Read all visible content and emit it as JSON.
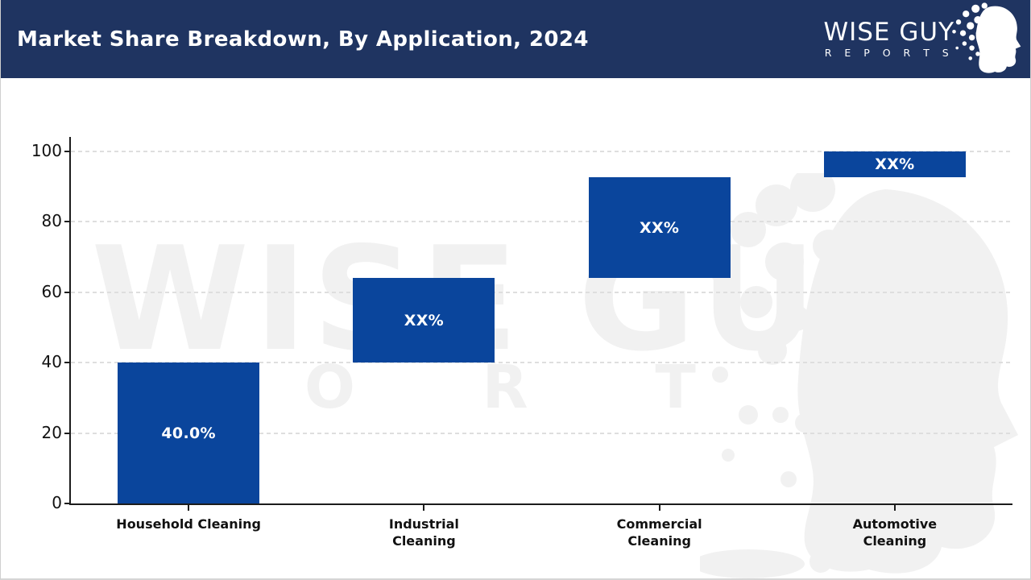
{
  "header": {
    "title": "Market Share Breakdown, By Application, 2024",
    "logo": {
      "line1": "WISE GUY",
      "line2": "R E P O R T S"
    },
    "bg_color": "#1f3461"
  },
  "watermark": {
    "line1": "WISE GUY",
    "line2": "P O R T S"
  },
  "chart_data": {
    "type": "bar",
    "subtype": "waterfall",
    "title": "Market Share Breakdown, By Application, 2024",
    "xlabel": "",
    "ylabel": "",
    "ylim": [
      0,
      104
    ],
    "y_ticks": [
      0,
      20,
      40,
      60,
      80,
      100
    ],
    "grid": "horizontal-dashed",
    "bar_color": "#0a459c",
    "categories": [
      {
        "lines": [
          "Household Cleaning"
        ]
      },
      {
        "lines": [
          "Industrial",
          "Cleaning"
        ]
      },
      {
        "lines": [
          "Commercial",
          "Cleaning"
        ]
      },
      {
        "lines": [
          "Automotive",
          "Cleaning"
        ]
      }
    ],
    "segments": [
      {
        "category": "Household Cleaning",
        "start": 0,
        "end": 40,
        "value": 40.0,
        "label": "40.0%"
      },
      {
        "category": "Industrial Cleaning",
        "start": 40,
        "end": 64,
        "value": 24.0,
        "label": "XX%"
      },
      {
        "category": "Commercial Cleaning",
        "start": 64,
        "end": 92.5,
        "value": 28.5,
        "label": "XX%"
      },
      {
        "category": "Automotive Cleaning",
        "start": 92.5,
        "end": 100,
        "value": 7.5,
        "label": "XX%"
      }
    ]
  }
}
